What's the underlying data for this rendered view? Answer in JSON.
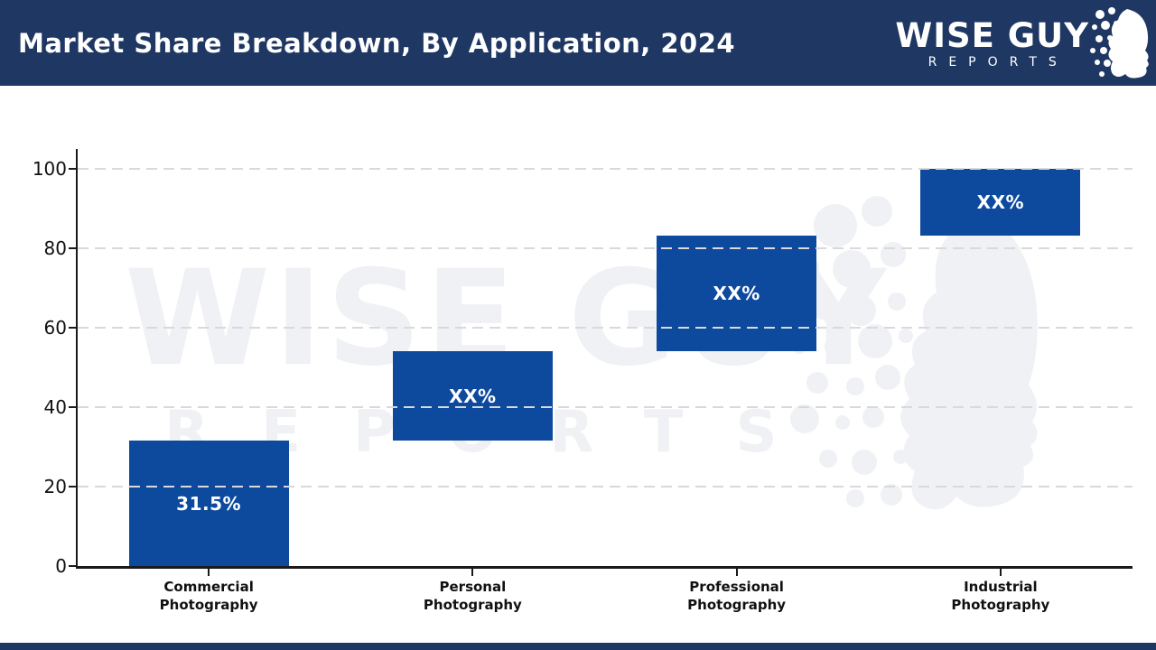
{
  "header": {
    "title": "Market Share Breakdown, By Application, 2024",
    "logo": {
      "line1": "WISE GUY",
      "line2": "REPORTS"
    }
  },
  "watermark": {
    "line1": "WISE GUY",
    "line2": "REPORTS"
  },
  "colors": {
    "header_navy": "#1f3763",
    "bar_blue": "#0d4a9e",
    "watermark_gray": "#f0f1f4",
    "gridline_gray": "#d9d9d9",
    "axis_black": "#1a1a1a",
    "label_white": "#ffffff"
  },
  "chart_data": {
    "type": "bar",
    "subtype": "waterfall",
    "title": "Market Share Breakdown, By Application, 2024",
    "categories": [
      "Commercial Photography",
      "Personal Photography",
      "Professional Photography",
      "Industrial Photography"
    ],
    "segments": [
      {
        "category": "Commercial Photography",
        "start": 0,
        "end": 31.5,
        "label": "31.5%"
      },
      {
        "category": "Personal Photography",
        "start": 31.5,
        "end": 54,
        "label": "XX%"
      },
      {
        "category": "Professional Photography",
        "start": 54,
        "end": 83,
        "label": "XX%"
      },
      {
        "category": "Industrial Photography",
        "start": 83,
        "end": 100,
        "label": "XX%"
      }
    ],
    "yticks": [
      0,
      20,
      40,
      60,
      80,
      100
    ],
    "ylim": [
      0,
      105
    ],
    "xlabel": "",
    "ylabel": "",
    "grid": "horizontal-dashed",
    "legend": "none",
    "bar_color": "#0d4a9e",
    "bar_label_color": "#ffffff"
  }
}
